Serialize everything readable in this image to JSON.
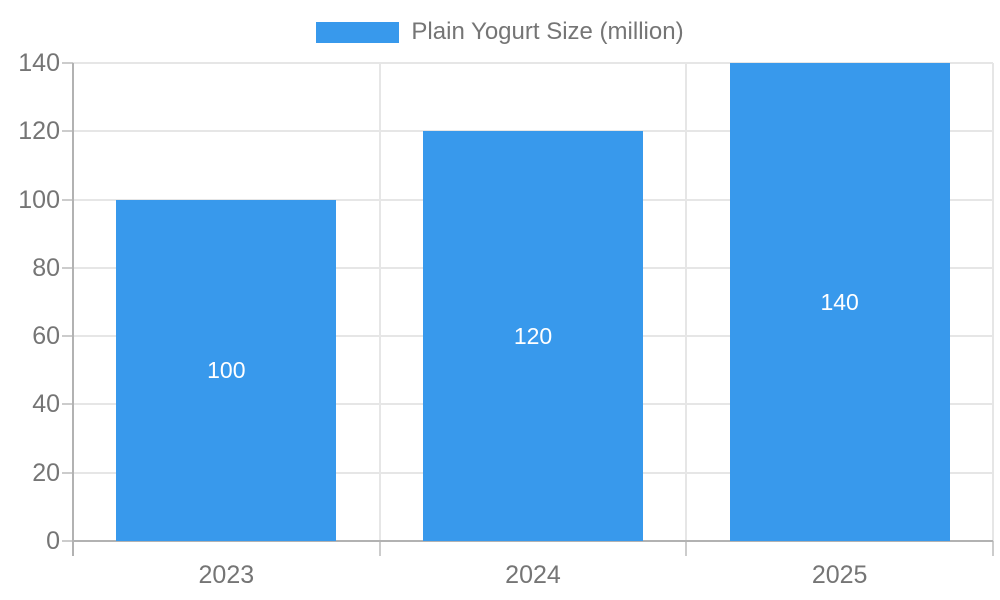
{
  "legend": {
    "label": "Plain Yogurt Size (million)"
  },
  "colors": {
    "bar": "#3899EC",
    "gridline": "#E6E6E6",
    "axis": "#B2B2B2",
    "tick": "#CCCCCC",
    "tick_text": "#757575",
    "legend_text": "#757575",
    "bar_label_text": "#FFFFFF",
    "background": "#FFFFFF"
  },
  "chart_data": {
    "type": "bar",
    "title": "",
    "xlabel": "",
    "ylabel": "",
    "categories": [
      "2023",
      "2024",
      "2025"
    ],
    "series": [
      {
        "name": "Plain Yogurt Size (million)",
        "values": [
          100,
          120,
          140
        ],
        "data_labels": [
          "100",
          "120",
          "140"
        ]
      }
    ],
    "ylim": [
      0,
      140
    ],
    "ytick_step": 20,
    "yticks": [
      0,
      20,
      40,
      60,
      80,
      100,
      120,
      140
    ],
    "ytick_labels": [
      "0",
      "20",
      "40",
      "60",
      "80",
      "100",
      "120",
      "140"
    ],
    "grid": true,
    "legend_position": "top-center"
  }
}
